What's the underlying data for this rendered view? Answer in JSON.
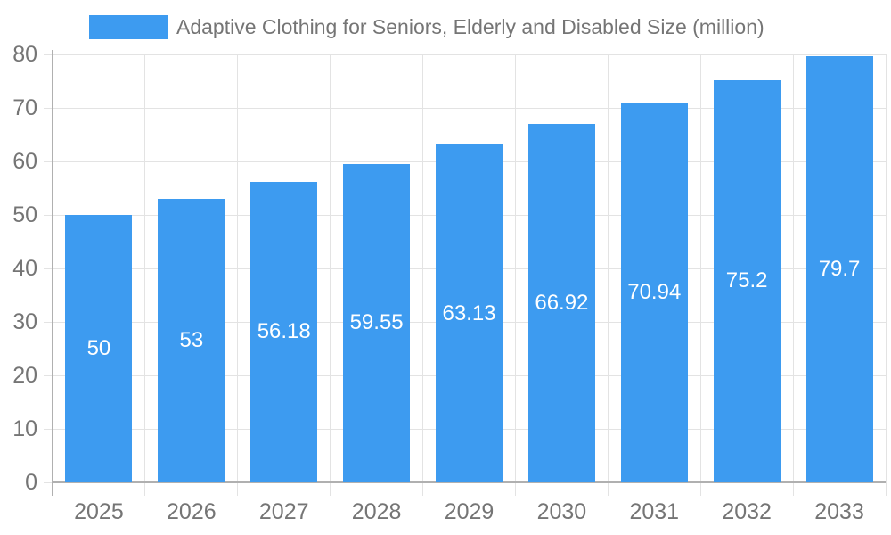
{
  "chart_data": {
    "type": "bar",
    "title": "Adaptive Clothing for Seniors, Elderly and Disabled Size (million)",
    "categories": [
      "2025",
      "2026",
      "2027",
      "2028",
      "2029",
      "2030",
      "2031",
      "2032",
      "2033"
    ],
    "values": [
      50,
      53,
      56.18,
      59.55,
      63.13,
      66.92,
      70.94,
      75.2,
      79.7
    ],
    "value_labels": [
      "50",
      "53",
      "56.18",
      "59.55",
      "63.13",
      "66.92",
      "70.94",
      "75.2",
      "79.7"
    ],
    "xlabel": "",
    "ylabel": "",
    "ylim": [
      0,
      80
    ],
    "ytick_step": 10,
    "y_tick_labels": [
      "0",
      "10",
      "20",
      "30",
      "40",
      "50",
      "60",
      "70",
      "80"
    ],
    "grid": true,
    "legend_position": "top"
  },
  "colors": {
    "bar": "#3d9bf0",
    "axis_text": "#757575",
    "bar_label_text": "#ffffff",
    "gridline": "#e3e3e3",
    "axis_line": "#b0b0b0",
    "background": "#ffffff"
  },
  "legend": {
    "label": "Adaptive Clothing for Seniors, Elderly and Disabled Size (million)"
  }
}
